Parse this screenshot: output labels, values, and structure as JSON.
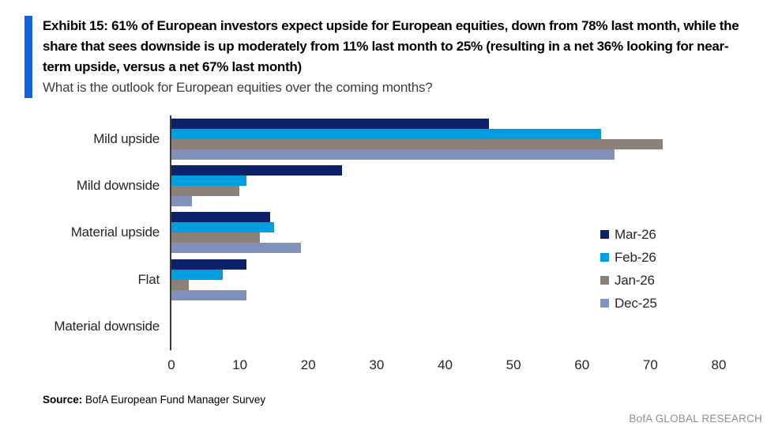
{
  "header": {
    "accent_color": "#1262df"
  },
  "chart_data": {
    "type": "bar",
    "orientation": "horizontal",
    "title": "Exhibit 15: 61% of European investors expect upside for European equities, down from 78% last month, while the share that sees downside is up moderately from 11% last month to 25% (resulting in a net 36% looking for near-term upside, versus a net 67% last month)",
    "subtitle": "What is the outlook for European equities over the coming months?",
    "categories": [
      "Mild upside",
      "Mild downside",
      "Material upside",
      "Flat",
      "Material downside"
    ],
    "series": [
      {
        "name": "Mar-26",
        "color": "#0c2167",
        "values": [
          46.5,
          25,
          14.5,
          11,
          0
        ]
      },
      {
        "name": "Feb-26",
        "color": "#009ddf",
        "values": [
          63,
          11,
          15,
          7.5,
          0
        ]
      },
      {
        "name": "Jan-26",
        "color": "#8b8179",
        "values": [
          72,
          10,
          13,
          2.5,
          0
        ]
      },
      {
        "name": "Dec-25",
        "color": "#8092bb",
        "values": [
          65,
          3,
          19,
          11,
          0
        ]
      }
    ],
    "xlabel": "",
    "ylabel": "",
    "xlim": [
      0,
      80
    ],
    "xticks": [
      0,
      10,
      20,
      30,
      40,
      50,
      60,
      70,
      80
    ],
    "grid": false,
    "legend_position": "middle-right"
  },
  "footer": {
    "source_label": "Source:",
    "source_text": " BofA European Fund Manager Survey",
    "brand": "BofA GLOBAL RESEARCH"
  }
}
